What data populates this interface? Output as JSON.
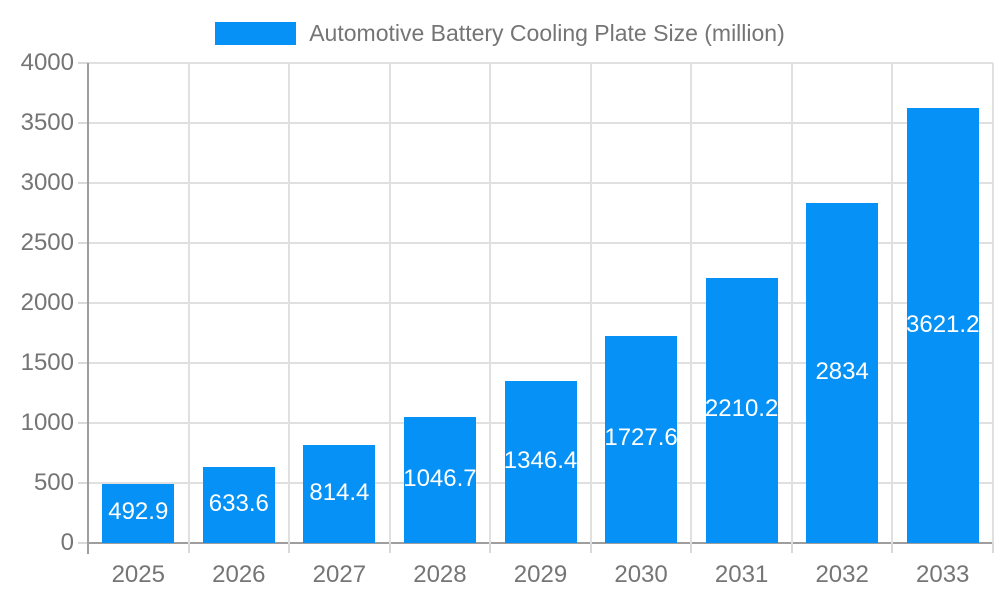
{
  "chart_data": {
    "type": "bar",
    "title": "Automotive Battery Cooling Plate Size (million)",
    "categories": [
      "2025",
      "2026",
      "2027",
      "2028",
      "2029",
      "2030",
      "2031",
      "2032",
      "2033"
    ],
    "values": [
      492.9,
      633.6,
      814.4,
      1046.7,
      1346.4,
      1727.6,
      2210.2,
      2834,
      3621.2
    ],
    "value_labels": [
      "492.9",
      "633.6",
      "814.4",
      "1046.7",
      "1346.4",
      "1727.6",
      "2210.2",
      "2834",
      "3621.2"
    ],
    "xlabel": "",
    "ylabel": "",
    "ylim": [
      0,
      4000
    ],
    "yticks": [
      0,
      500,
      1000,
      1500,
      2000,
      2500,
      3000,
      3500,
      4000
    ],
    "grid": true,
    "legend_position": "top-center",
    "colors": {
      "bar": "#0591f5",
      "value_label": "#ffffff",
      "axis_text": "#757575",
      "grid_line": "#e0e0e0",
      "axis_line": "#9e9e9e",
      "minor_tick": "#d9d9d9",
      "background": "#ffffff"
    }
  }
}
